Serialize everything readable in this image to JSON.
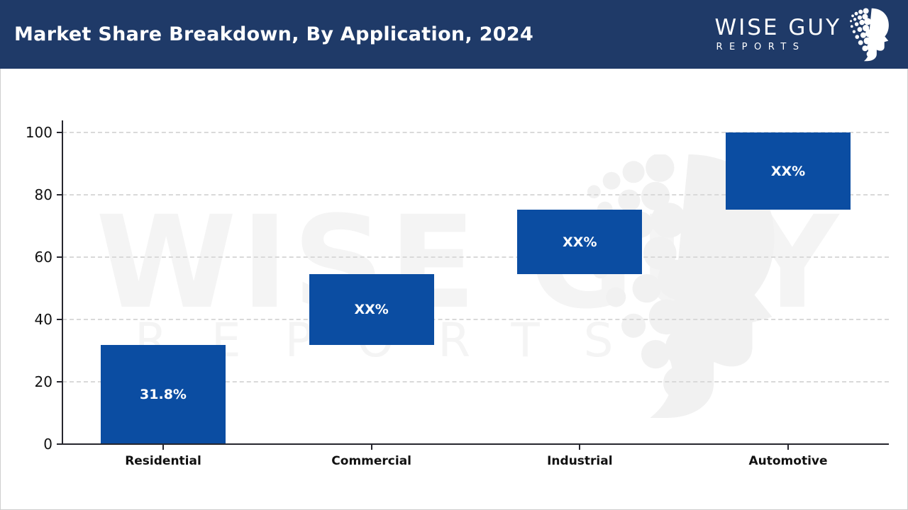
{
  "header": {
    "title": "Market Share Breakdown, By Application, 2024",
    "bg_color": "#1f3a68",
    "logo": {
      "line1": "WISE GUY",
      "line2": "REPORTS"
    }
  },
  "watermark": {
    "line1": "WISE GUY",
    "line2": "REPORTS",
    "color": "#f4f4f4",
    "head_color": "#f1f1f1"
  },
  "chart_data": {
    "type": "bar",
    "subtype": "waterfall-floating-bars",
    "title": "Market Share Breakdown, By Application, 2024",
    "categories": [
      "Residential",
      "Commercial",
      "Industrial",
      "Automotive"
    ],
    "segments": [
      {
        "category": "Residential",
        "start": 0,
        "end": 31.8,
        "label": "31.8%"
      },
      {
        "category": "Commercial",
        "start": 31.8,
        "end": 54.5,
        "label": "XX%"
      },
      {
        "category": "Industrial",
        "start": 54.5,
        "end": 75.2,
        "label": "XX%"
      },
      {
        "category": "Automotive",
        "start": 75.2,
        "end": 100,
        "label": "XX%"
      }
    ],
    "y_ticks": [
      0,
      20,
      40,
      60,
      80,
      100
    ],
    "ylim": [
      0,
      100
    ],
    "bar_color": "#0b4da2",
    "label_color": "#ffffff",
    "grid": "horizontal-dashed",
    "grid_color": "#d9d9d9",
    "legend": "none"
  }
}
